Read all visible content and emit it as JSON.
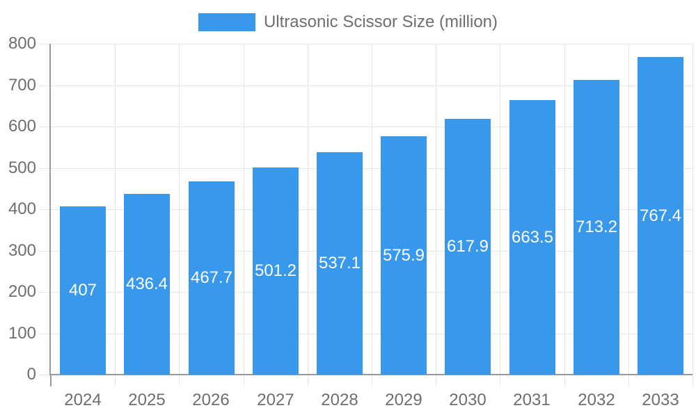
{
  "chart_data": {
    "type": "bar",
    "title": "Ultrasonic Scissor Size (million)",
    "series_name": "Ultrasonic Scissor Size (million)",
    "categories": [
      "2024",
      "2025",
      "2026",
      "2027",
      "2028",
      "2029",
      "2030",
      "2031",
      "2032",
      "2033"
    ],
    "values": [
      407,
      436.4,
      467.7,
      501.2,
      537.1,
      575.9,
      617.9,
      663.5,
      713.2,
      767.4
    ],
    "value_labels": [
      "407",
      "436.4",
      "467.7",
      "501.2",
      "537.1",
      "575.9",
      "617.9",
      "663.5",
      "713.2",
      "767.4"
    ],
    "xlabel": "",
    "ylabel": "",
    "ylim": [
      0,
      800
    ],
    "ytick_interval": 100,
    "ytick_labels": [
      "0",
      "100",
      "200",
      "300",
      "400",
      "500",
      "600",
      "700",
      "800"
    ],
    "grid": true,
    "legend_position": "top-center",
    "colors": {
      "bar": "#3898EC",
      "value_label": "#FFFFFF",
      "gridline": "#E6E6E6",
      "axis_line": "#999999",
      "tick_label": "#6E6E6E",
      "background": "#FFFFFF"
    }
  }
}
